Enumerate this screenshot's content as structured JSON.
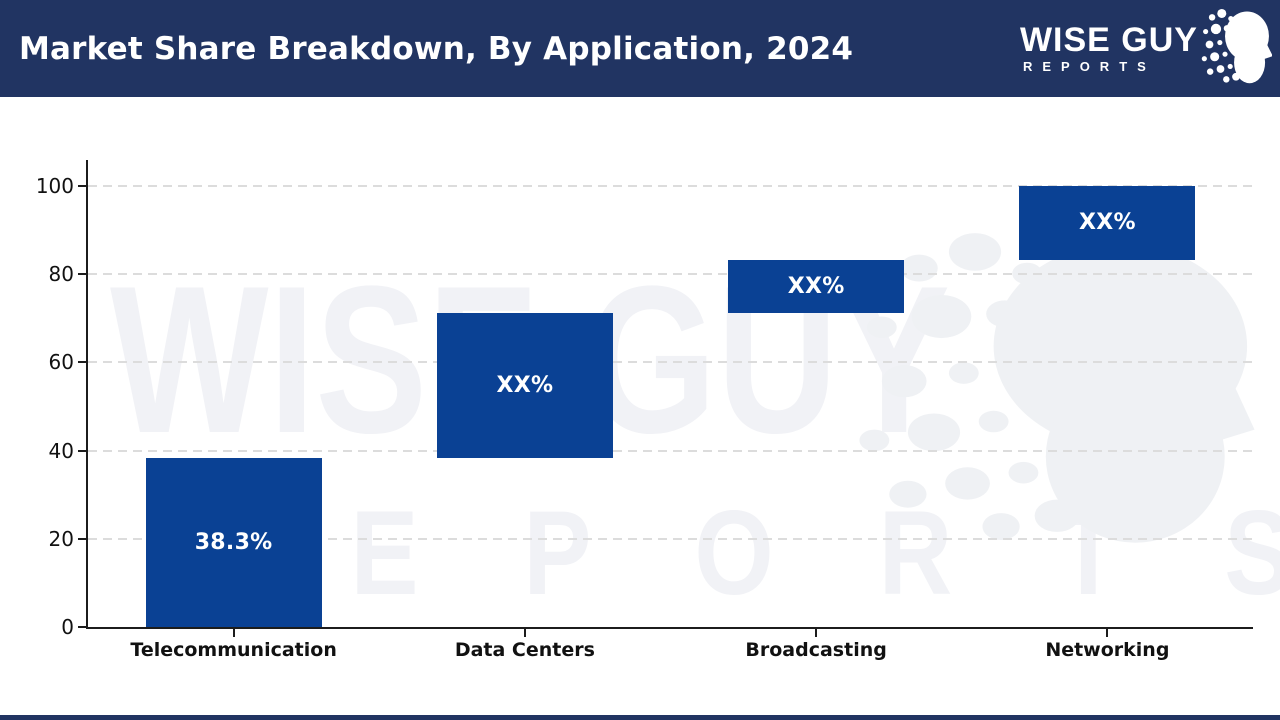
{
  "header": {
    "title": "Market Share Breakdown, By Application, 2024",
    "logo": {
      "wordmark": "WISE GUY",
      "subtext": "REPORTS"
    },
    "bg_color": "#213462"
  },
  "watermark": {
    "line1": "WISE GUY",
    "line2": "REPORTS"
  },
  "chart_data": {
    "type": "bar",
    "subtype": "waterfall",
    "title": "Market Share Breakdown, By Application, 2024",
    "categories": [
      "Telecommunication",
      "Data Centers",
      "Broadcasting",
      "Networking"
    ],
    "segments": [
      {
        "category": "Telecommunication",
        "start": 0,
        "end": 38.3,
        "label": "38.3%"
      },
      {
        "category": "Data Centers",
        "start": 38.3,
        "end": 71.1,
        "label": "XX%"
      },
      {
        "category": "Broadcasting",
        "start": 71.1,
        "end": 83.3,
        "label": "XX%"
      },
      {
        "category": "Networking",
        "start": 83.3,
        "end": 100,
        "label": "XX%"
      }
    ],
    "xlabel": "",
    "ylabel": "",
    "ylim": [
      0,
      106
    ],
    "yticks": [
      0,
      20,
      40,
      60,
      80,
      100
    ],
    "grid": "horizontal-dashed",
    "legend": "none",
    "bar_color": "#0a4194",
    "bar_label_color": "#ffffff",
    "axis_color": "#1c1c1c",
    "grid_color": "#dcdcdc"
  }
}
